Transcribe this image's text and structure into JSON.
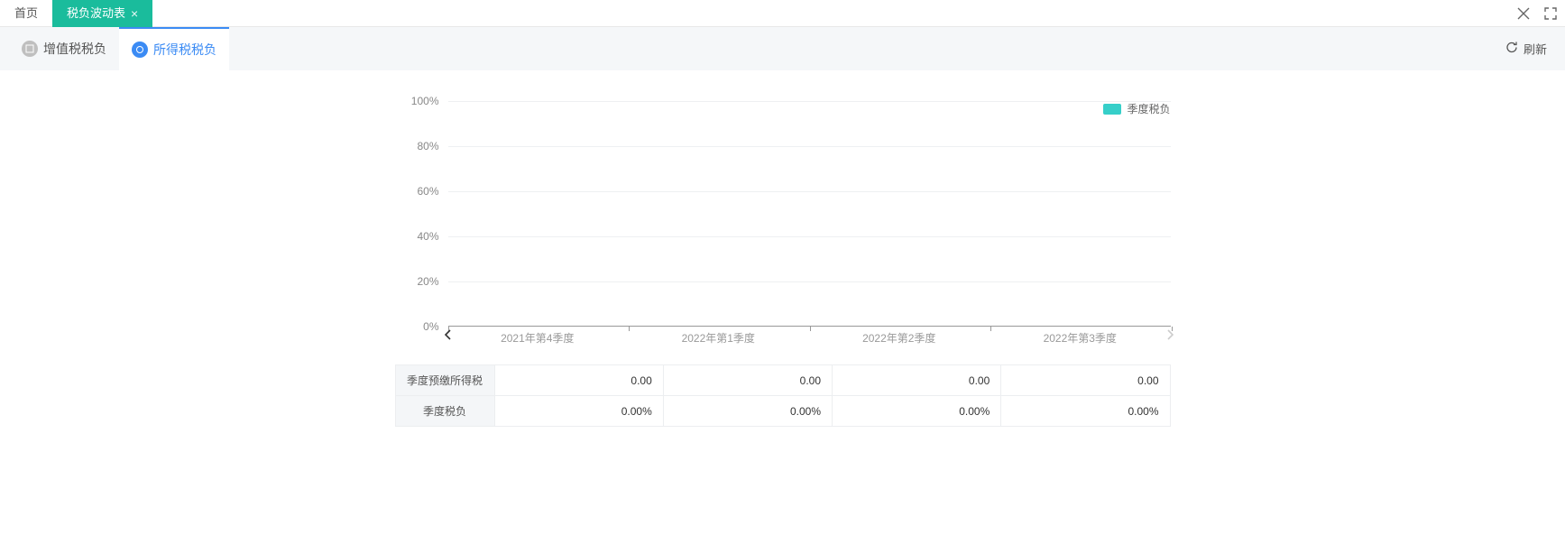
{
  "topTabs": {
    "home": "首页",
    "active": "税负波动表"
  },
  "subTabs": {
    "vat": "增值税税负",
    "incomeTax": "所得税税负"
  },
  "actions": {
    "refresh": "刷新"
  },
  "chart": {
    "type": "bar",
    "legend_label": "季度税负",
    "legend_color": "#36cfc9",
    "categories": [
      "2021年第4季度",
      "2022年第1季度",
      "2022年第2季度",
      "2022年第3季度"
    ],
    "values": [
      0,
      0,
      0,
      0
    ],
    "ylim": [
      0,
      100
    ],
    "ytick_step": 20,
    "ytick_suffix": "%",
    "grid_color": "#eef0f2",
    "axis_color": "#999999",
    "label_color": "#999999",
    "tick_fontsize": 12
  },
  "table": {
    "rows": [
      {
        "label": "季度预缴所得税",
        "values": [
          "0.00",
          "0.00",
          "0.00",
          "0.00"
        ]
      },
      {
        "label": "季度税负",
        "values": [
          "0.00%",
          "0.00%",
          "0.00%",
          "0.00%"
        ]
      }
    ]
  }
}
